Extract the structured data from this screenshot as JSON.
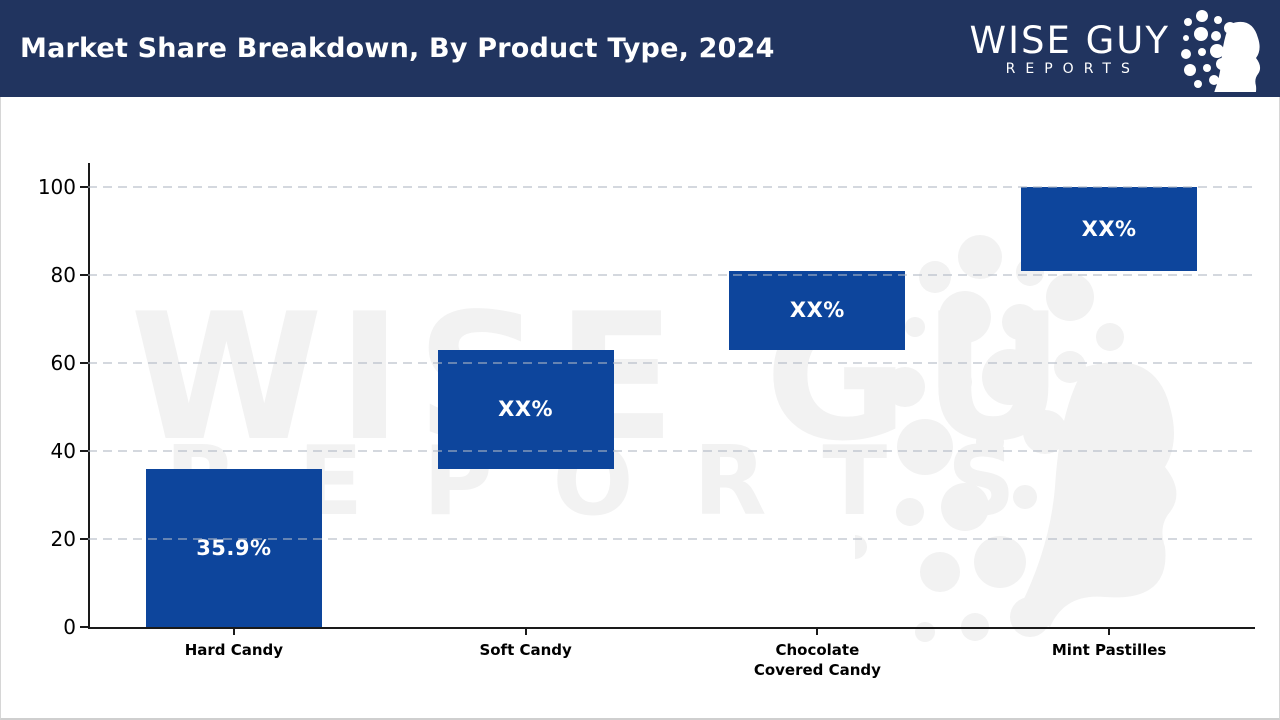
{
  "header": {
    "title": "Market Share Breakdown, By Product Type, 2024",
    "logo": {
      "line1": "WISE GUY",
      "line2": "REPORTS"
    }
  },
  "watermark": {
    "line1": "WISE GU",
    "line2": "REPORTS"
  },
  "colors": {
    "header_bg": "#21345f",
    "bar": "#0d459c",
    "bar_label": "#ffffff",
    "axis": "#1a1a1a",
    "watermark": "#f2f2f2"
  },
  "chart_data": {
    "type": "bar",
    "subtype": "floating-waterfall",
    "title": "Market Share Breakdown, By Product Type, 2024",
    "categories": [
      "Hard Candy",
      "Soft Candy",
      "Chocolate Covered Candy",
      "Mint Pastilles"
    ],
    "series": [
      {
        "name": "Market Share %",
        "segments": [
          {
            "category": "Hard Candy",
            "start": 0,
            "end": 35.9,
            "label": "35.9%"
          },
          {
            "category": "Soft Candy",
            "start": 35.9,
            "end": 63.0,
            "label": "XX%"
          },
          {
            "category": "Chocolate Covered Candy",
            "start": 63.0,
            "end": 81.0,
            "label": "XX%"
          },
          {
            "category": "Mint Pastilles",
            "start": 81.0,
            "end": 100.0,
            "label": "XX%"
          }
        ]
      }
    ],
    "xlabel": "",
    "ylabel": "",
    "ylim": [
      0,
      100
    ],
    "yticks": [
      0,
      20,
      40,
      60,
      80,
      100
    ],
    "grid": "dashed horizontal gridlines at each y tick, drawn over bars",
    "legend": "none"
  }
}
